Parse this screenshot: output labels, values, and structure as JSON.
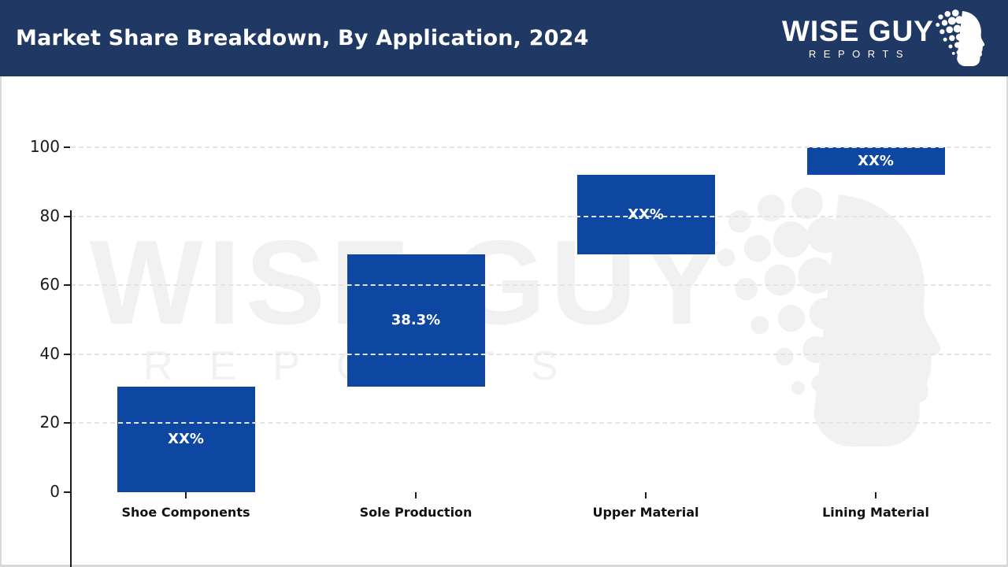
{
  "header": {
    "title": "Market Share Breakdown, By Application, 2024",
    "logo": {
      "line1": "WISE GUY",
      "line2": "REPORTS"
    }
  },
  "watermark": {
    "line1": "WISE GUY",
    "line2": "REPORTS"
  },
  "colors": {
    "header_navy": "#203864",
    "bar_blue": "#0D47A1",
    "bar_label_white": "#ffffff",
    "gridline_gray": "#e4e4e4",
    "watermark_gray": "#f1f1f1",
    "axis_black": "#1c1c1c"
  },
  "chart_data": {
    "type": "bar",
    "subtype": "floating-waterfall",
    "title": "Market Share Breakdown, By Application, 2024",
    "categories": [
      "Shoe Components",
      "Sole Production",
      "Upper Material",
      "Lining Material"
    ],
    "segments": [
      {
        "category": "Shoe Components",
        "start": 0,
        "end": 30.7,
        "label": "XX%"
      },
      {
        "category": "Sole Production",
        "start": 30.7,
        "end": 69,
        "label": "38.3%"
      },
      {
        "category": "Upper Material",
        "start": 69,
        "end": 92,
        "label": "XX%"
      },
      {
        "category": "Lining Material",
        "start": 92,
        "end": 100,
        "label": "XX%"
      }
    ],
    "xlabel": "",
    "ylabel": "",
    "ylim": [
      0,
      100
    ],
    "yticks": [
      0,
      20,
      40,
      60,
      80,
      100
    ],
    "grid": {
      "axis": "y",
      "style": "dashed",
      "drawn_above_bars": true
    },
    "legend": "none"
  }
}
